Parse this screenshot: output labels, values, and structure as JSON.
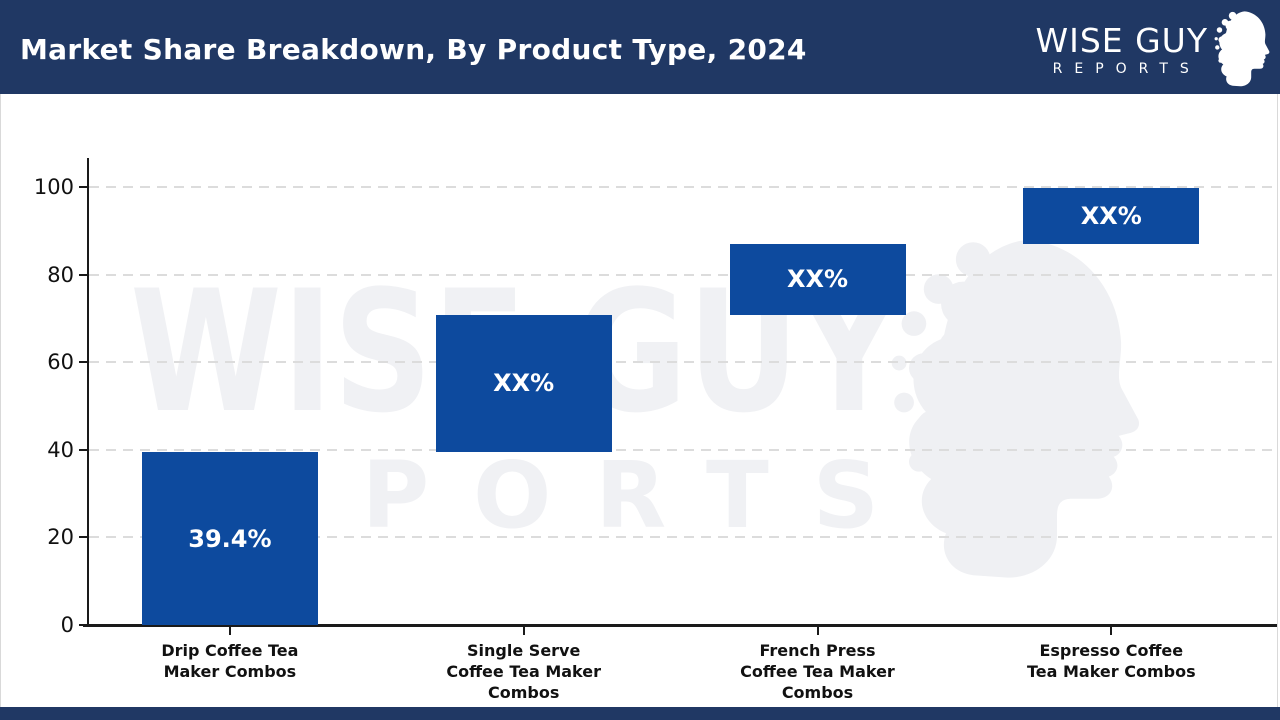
{
  "header": {
    "title": "Market Share Breakdown, By Product Type, 2024",
    "bg_color": "#203864",
    "brand_name": "WISE GUY",
    "brand_tagline": "REPORTS"
  },
  "watermark": {
    "line1": "WISE GUY",
    "line2": "REPORTS",
    "color": "#f0f1f4"
  },
  "chart_data": {
    "type": "bar",
    "subtype": "waterfall",
    "title": "Market Share Breakdown, By Product Type, 2024",
    "categories": [
      "Drip Coffee Tea Maker Combos",
      "Single Serve Coffee Tea Maker Combos",
      "French Press Coffee Tea Maker Combos",
      "Espresso Coffee Tea Maker Combos"
    ],
    "category_lines": [
      [
        "Drip Coffee Tea",
        "Maker Combos"
      ],
      [
        "Single Serve",
        "Coffee Tea Maker",
        "Combos"
      ],
      [
        "French Press",
        "Coffee Tea Maker",
        "Combos"
      ],
      [
        "Espresso Coffee",
        "Tea Maker Combos"
      ]
    ],
    "segments": [
      {
        "start": 0,
        "end": 39.4,
        "label": "39.4%"
      },
      {
        "start": 39.5,
        "end": 70.8,
        "label": "XX%"
      },
      {
        "start": 70.8,
        "end": 87.0,
        "label": "XX%"
      },
      {
        "start": 87.0,
        "end": 99.8,
        "label": "XX%"
      }
    ],
    "xlabel": "",
    "ylabel": "",
    "ylim": [
      0,
      100
    ],
    "yticks": [
      0,
      20,
      40,
      60,
      80,
      100
    ],
    "grid": "horizontal-dashed",
    "legend": "none",
    "bar_color": "#0d4a9e",
    "value_label_color": "#ffffff"
  }
}
